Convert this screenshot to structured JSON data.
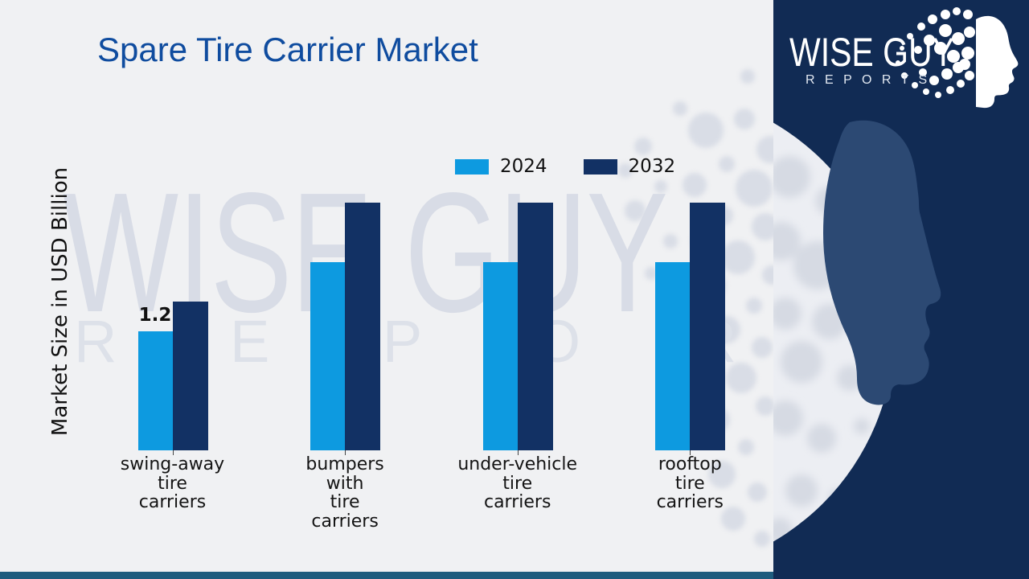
{
  "title": "Spare Tire Carrier Market",
  "watermark": {
    "line1": "WISE GUY",
    "line2": "R E P O R T S"
  },
  "logo": {
    "line1": "WISE GUY",
    "line2": "R E P O R T S"
  },
  "colors": {
    "background": "#f0f1f3",
    "title_blue": "#0f4c9f",
    "bar_2024": "#0d9ae0",
    "bar_2032": "#123164",
    "panel_navy": "#112b54",
    "bottom_bar_teal": "#1e5c7e",
    "watermark_gray": "#d8dce6"
  },
  "chart_data": {
    "type": "bar",
    "title": "Spare Tire Carrier Market",
    "xlabel": "",
    "ylabel": "Market Size in USD Billion",
    "ylim": [
      0,
      2.9
    ],
    "grid": false,
    "legend_position": "top",
    "categories": [
      "swing-away tire carriers",
      "bumpers with tire carriers",
      "under-vehicle tire carriers",
      "rooftop tire carriers"
    ],
    "categories_lines": [
      [
        "swing-away",
        "tire",
        "carriers"
      ],
      [
        "bumpers",
        "with",
        "tire",
        "carriers"
      ],
      [
        "under-vehicle",
        "tire",
        "carriers"
      ],
      [
        "rooftop",
        "tire",
        "carriers"
      ]
    ],
    "series": [
      {
        "name": "2024",
        "color": "#0d9ae0",
        "values": [
          1.2,
          1.9,
          1.9,
          1.9
        ]
      },
      {
        "name": "2032",
        "color": "#123164",
        "values": [
          1.5,
          2.5,
          2.5,
          2.5
        ]
      }
    ],
    "value_labels": [
      {
        "series": 0,
        "category": 0,
        "text": "1.2"
      }
    ]
  }
}
